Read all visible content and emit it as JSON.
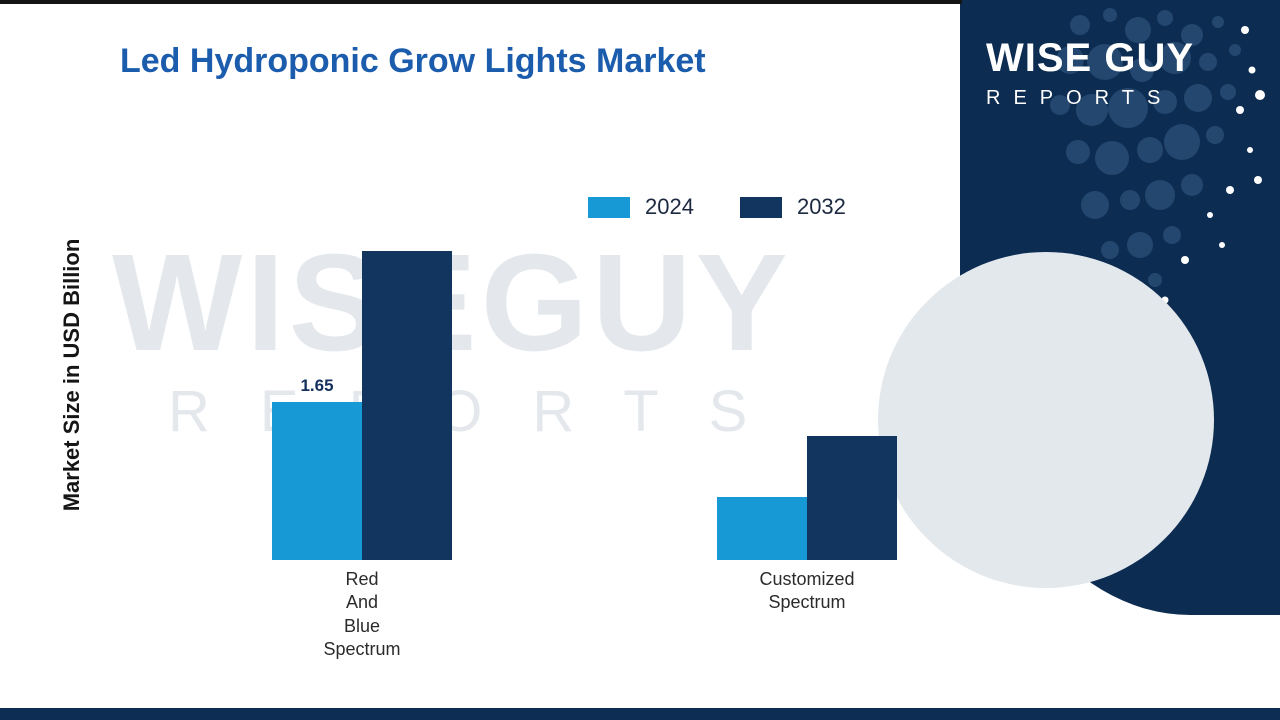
{
  "page": {
    "title": "Led Hydroponic Grow Lights Market"
  },
  "brand": {
    "wordmark": "WISE GUY",
    "subtitle": "REPORTS"
  },
  "watermark": {
    "line1": "WISEGUY",
    "line2": "REPORTS"
  },
  "chart_data": {
    "type": "bar",
    "title": "Led Hydroponic Grow Lights Market",
    "ylabel": "Market Size in USD Billion",
    "xlabel": "",
    "categories": [
      "Red And Blue Spectrum",
      "Customized Spectrum"
    ],
    "series": [
      {
        "name": "2024",
        "color": "#1799d6",
        "values": [
          1.65,
          0.66
        ]
      },
      {
        "name": "2032",
        "color": "#123560",
        "values": [
          3.23,
          1.29
        ]
      }
    ],
    "value_labels": [
      {
        "text": "1.65",
        "series_index": 0,
        "category_index": 0
      }
    ],
    "ylim": [
      0,
      3.5
    ],
    "grid": false,
    "legend_position": "top-center"
  }
}
